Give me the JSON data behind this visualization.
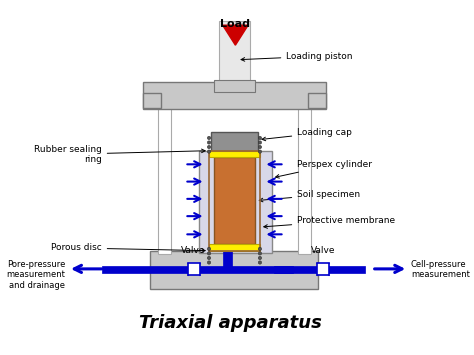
{
  "title": "Triaxial apparatus",
  "title_fontsize": 13,
  "background_color": "#ffffff",
  "gray_color": "#c8c8c8",
  "dark_gray": "#999999",
  "white_color": "#ffffff",
  "blue_color": "#0000cc",
  "red_color": "#cc0000",
  "soil_color": "#c87030",
  "yellow_color": "#ffee00",
  "labels": {
    "load": "Load",
    "loading_piston": "Loading piston",
    "loading_cap": "Loading cap",
    "perspex_cylinder": "Perspex cylinder",
    "soil_specimen": "Soil specimen",
    "protective_membrane": "Protective membrane",
    "rubber_sealing_ring": "Rubber sealing\nring",
    "porous_disc": "Porous disc",
    "pore_pressure": "Pore-pressure\nmeasurement\nand drainage",
    "valve_left": "Valve",
    "valve_right": "Valve",
    "cell_pressure": "Cell-pressure\nmeasurement"
  }
}
